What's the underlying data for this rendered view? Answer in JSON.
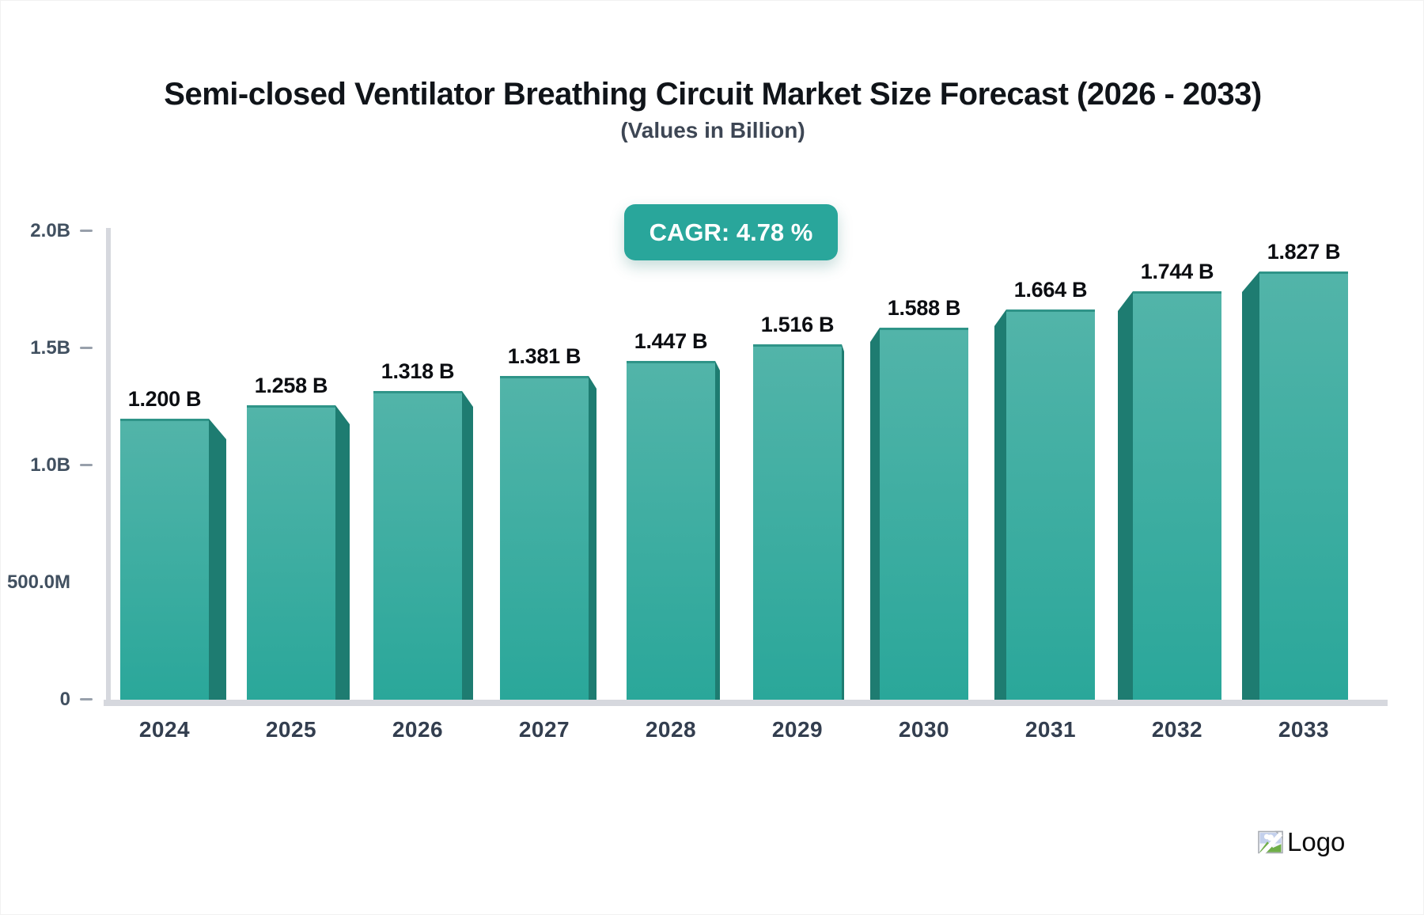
{
  "title": "Semi-closed Ventilator Breathing Circuit Market Size Forecast (2026 - 2033)",
  "subtitle": "(Values in Billion)",
  "badge": {
    "label": "CAGR: 4.78 %"
  },
  "logo": {
    "alt_text": "Logo"
  },
  "colors": {
    "badge_bg": "#29a69b",
    "bar_gradient_top": "#52b4a9",
    "bar_gradient_bottom": "#2aa79a",
    "bar_top_edge": "#2f9488",
    "bar_side": "#1e7c71",
    "axis_line": "#d6d8de",
    "tick_dash": "#98a0ab",
    "y_label": "#415060",
    "x_label": "#333e4f",
    "value_label": "#0c0e12"
  },
  "chart_data": {
    "type": "bar",
    "title": "Semi-closed Ventilator Breathing Circuit Market Size Forecast (2026 - 2033)",
    "subtitle": "(Values in Billion)",
    "categories": [
      "2024",
      "2025",
      "2026",
      "2027",
      "2028",
      "2029",
      "2030",
      "2031",
      "2032",
      "2033"
    ],
    "values": [
      1.2,
      1.258,
      1.318,
      1.381,
      1.447,
      1.516,
      1.588,
      1.664,
      1.744,
      1.827
    ],
    "value_labels": [
      "1.200 B",
      "1.258 B",
      "1.318 B",
      "1.381 B",
      "1.447 B",
      "1.516 B",
      "1.588 B",
      "1.664 B",
      "1.744 B",
      "1.827 B"
    ],
    "unit": "Billion",
    "cagr_percent": 4.78,
    "xlabel": "",
    "ylabel": "",
    "ylim": [
      0,
      2.0
    ],
    "grid": false,
    "legend": false,
    "y_ticks": [
      {
        "label": "2.0B",
        "value": 2.0,
        "dash": true
      },
      {
        "label": "1.5B",
        "value": 1.5,
        "dash": true
      },
      {
        "label": "1.0B",
        "value": 1.0,
        "dash": true
      },
      {
        "label": "500.0M",
        "value": 0.5,
        "dash": false
      },
      {
        "label": "0",
        "value": 0.0,
        "dash": true
      }
    ]
  }
}
